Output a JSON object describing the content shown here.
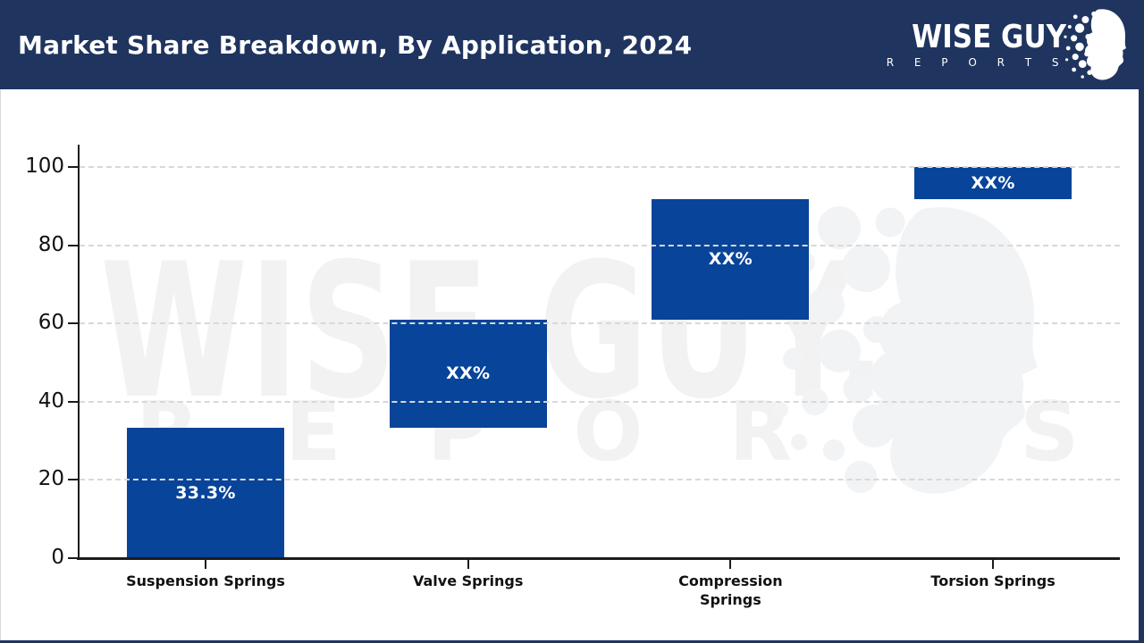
{
  "header": {
    "title": "Market Share Breakdown, By Application, 2024",
    "bg_color": "#1f345f",
    "logo": {
      "line1": "WISE GUY",
      "line2": "R E P O R T S"
    }
  },
  "watermark": {
    "line1": "WISE GUY.",
    "line2": "R E P O R T S"
  },
  "chart_data": {
    "type": "bar",
    "subtype": "stacked-waterfall",
    "title": "Market Share Breakdown, By Application, 2024",
    "xlabel": "",
    "ylabel": "",
    "ylim": [
      0,
      105
    ],
    "yticks": [
      0,
      20,
      40,
      60,
      80,
      100
    ],
    "grid": "horizontal-dashed",
    "legend": "none",
    "bar_color": "#084499",
    "categories": [
      "Suspension Springs",
      "Valve Springs",
      "Compression\nSprings",
      "Torsion Springs"
    ],
    "segments": [
      {
        "category": "Suspension Springs",
        "start": 0,
        "end": 33.3,
        "label": "33.3%"
      },
      {
        "category": "Valve Springs",
        "start": 33.3,
        "end": 61.0,
        "label": "XX%"
      },
      {
        "category": "Compression Springs",
        "start": 61.0,
        "end": 91.8,
        "label": "XX%"
      },
      {
        "category": "Torsion Springs",
        "start": 91.8,
        "end": 100.0,
        "label": "XX%"
      }
    ]
  }
}
